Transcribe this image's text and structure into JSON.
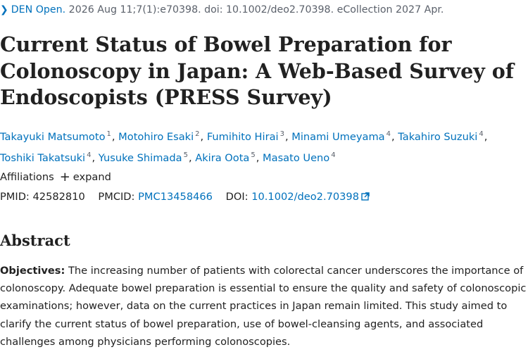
{
  "citation": {
    "journal": "DEN Open.",
    "details": "2026 Aug 11;7(1):e70398. doi: 10.1002/deo2.70398. eCollection 2027 Apr."
  },
  "title": "Current Status of Bowel Preparation for Colonoscopy in Japan: A Web-Based Survey of Endoscopists (PRESS Survey)",
  "authors": [
    {
      "name": "Takayuki Matsumoto",
      "aff": "1"
    },
    {
      "name": "Motohiro Esaki",
      "aff": "2"
    },
    {
      "name": "Fumihito Hirai",
      "aff": "3"
    },
    {
      "name": "Minami Umeyama",
      "aff": "4"
    },
    {
      "name": "Takahiro Suzuki",
      "aff": "4"
    },
    {
      "name": "Toshiki Takatsuki",
      "aff": "4"
    },
    {
      "name": "Yusuke Shimada",
      "aff": "5"
    },
    {
      "name": "Akira Oota",
      "aff": "5"
    },
    {
      "name": "Masato Ueno",
      "aff": "4"
    }
  ],
  "affiliations": {
    "label": "Affiliations",
    "expand": "expand"
  },
  "identifiers": {
    "pmid_label": "PMID:",
    "pmid": "42582810",
    "pmcid_label": "PMCID:",
    "pmcid": "PMC13458466",
    "doi_label": "DOI:",
    "doi": "10.1002/deo2.70398"
  },
  "abstract": {
    "heading": "Abstract",
    "objectives_label": "Objectives:",
    "objectives_text": "The increasing number of patients with colorectal cancer underscores the importance of colonoscopy. Adequate bowel preparation is essential to ensure the quality and safety of colonoscopic examinations; however, data on the current practices in Japan remain limited. This study aimed to clarify the current status of bowel preparation, use of bowel-cleansing agents, and associated challenges among physicians performing colonoscopies."
  },
  "colors": {
    "link": "#0071bc",
    "text": "#212121",
    "muted": "#5b616b"
  }
}
